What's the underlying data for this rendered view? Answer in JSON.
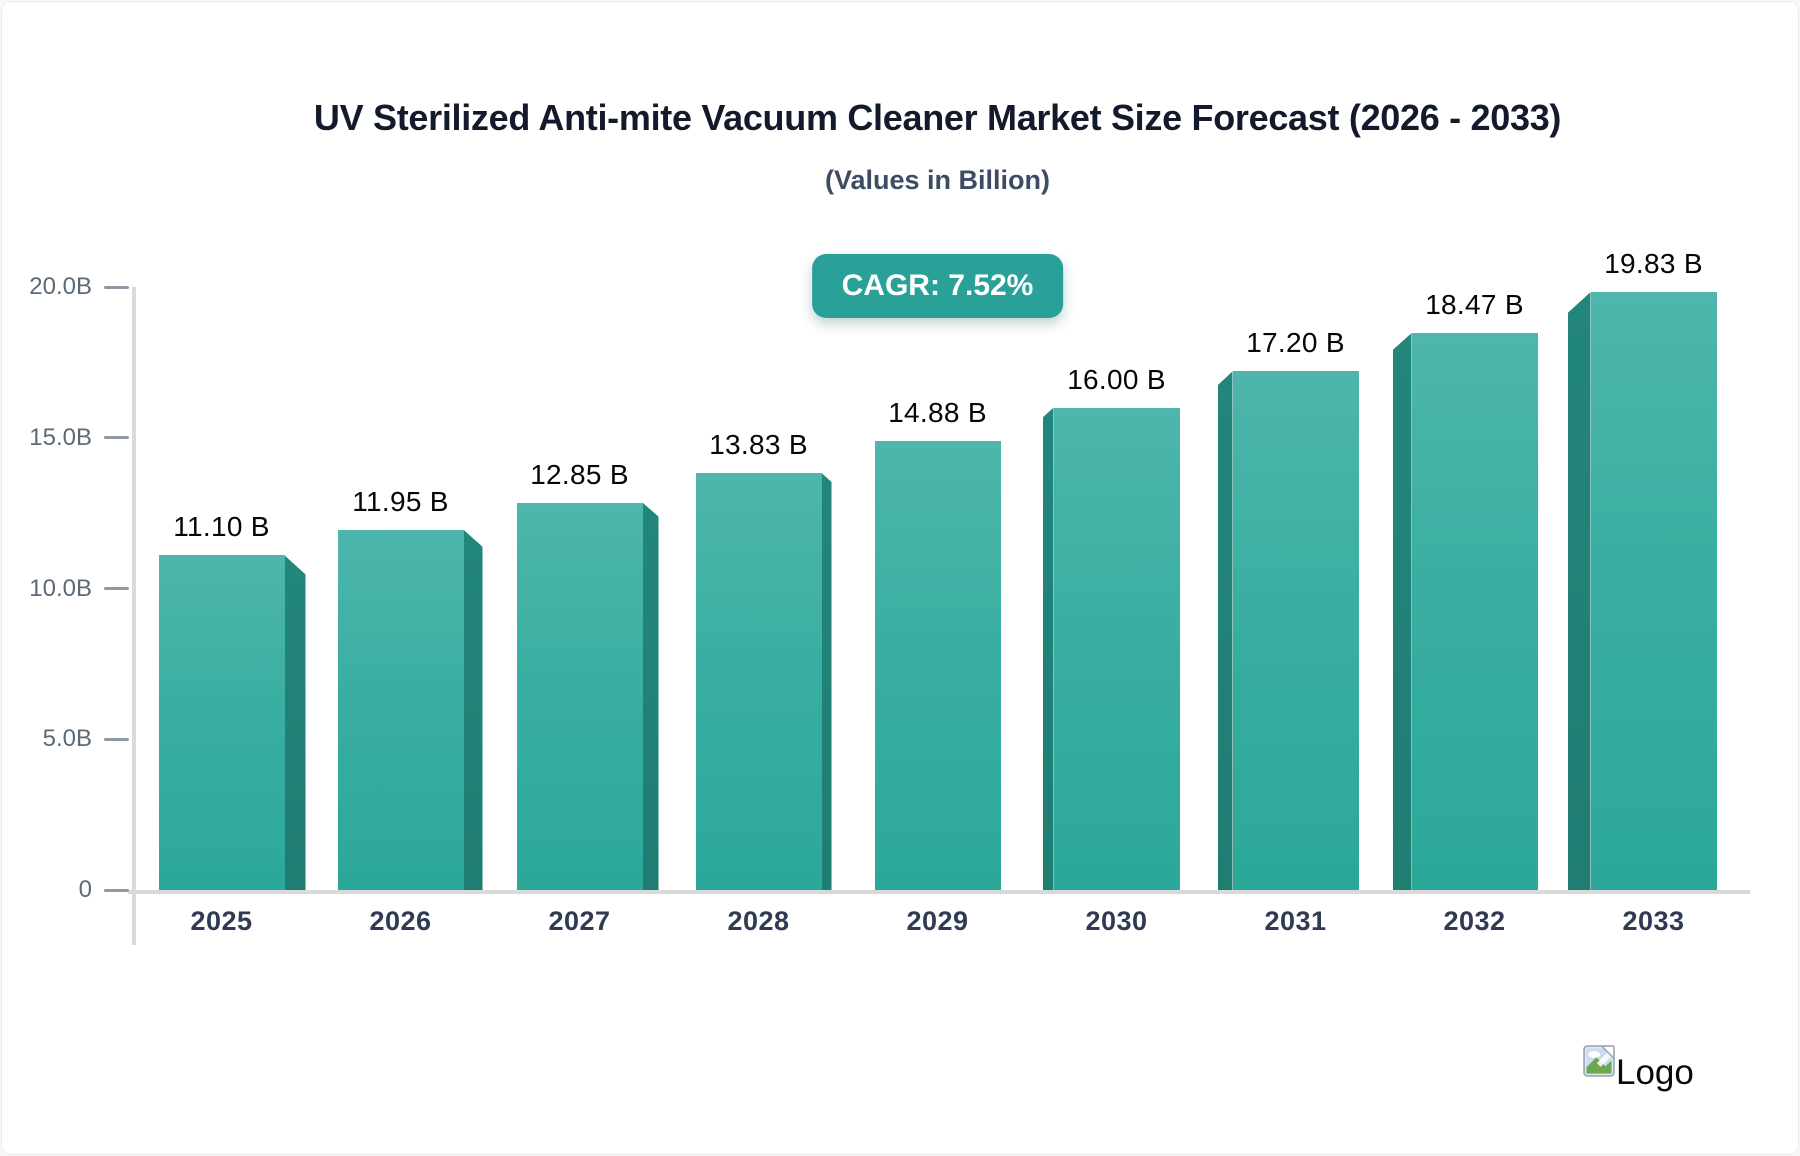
{
  "chart_data": {
    "type": "bar",
    "title": "UV Sterilized Anti-mite Vacuum Cleaner Market Size Forecast (2026 - 2033)",
    "subtitle": "(Values in Billion)",
    "annotation_badge": "CAGR: 7.52%",
    "categories": [
      "2025",
      "2026",
      "2027",
      "2028",
      "2029",
      "2030",
      "2031",
      "2032",
      "2033"
    ],
    "values": [
      11.1,
      11.95,
      12.85,
      13.83,
      14.88,
      16.0,
      17.2,
      18.47,
      19.83
    ],
    "value_labels": [
      "11.10 B",
      "11.95 B",
      "12.85 B",
      "13.83 B",
      "14.88 B",
      "16.00 B",
      "17.20 B",
      "18.47 B",
      "19.83 B"
    ],
    "yticks": [
      {
        "value": 0,
        "label": "0"
      },
      {
        "value": 5,
        "label": "5.0B"
      },
      {
        "value": 10,
        "label": "10.0B"
      },
      {
        "value": 15,
        "label": "15.0B"
      },
      {
        "value": 20,
        "label": "20.0B"
      }
    ],
    "ylim": [
      0,
      20
    ],
    "grid": false,
    "legend_position": "none",
    "colors": {
      "bar": "#2fa89b",
      "bar_side": "#1f7d72",
      "badge_bg": "#2aa198",
      "axis_line": "#d6dbe2",
      "tick_label": "#5b6979",
      "x_label": "#2e3b52",
      "value_label": "#060606"
    }
  },
  "footer": {
    "logo_alt": "Logo"
  }
}
